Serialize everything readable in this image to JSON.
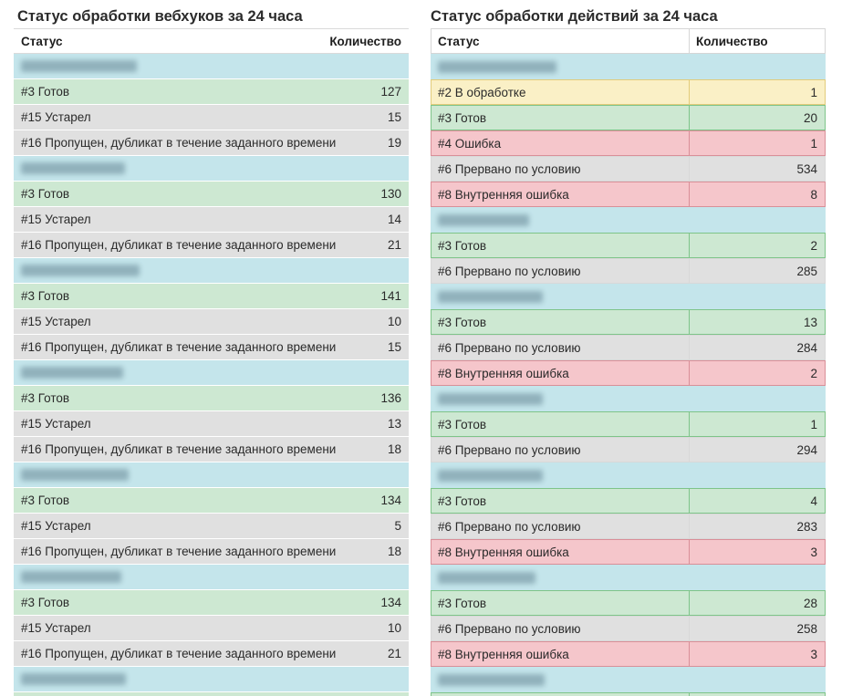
{
  "page": {
    "background": "#ffffff"
  },
  "colors": {
    "group_header_bg": "#c4e5eb",
    "redacted_blob": "#8cadb8",
    "header_border": "#d8d8d8",
    "variants": {
      "green": {
        "bg": "#cde8d2",
        "border": "#7ec489"
      },
      "gray": {
        "bg": "#e0e0e0",
        "border": "#d8d8d8"
      },
      "yellow": {
        "bg": "#faf0c6",
        "border": "#e2cc7b"
      },
      "red": {
        "bg": "#f5c6cb",
        "border": "#d98f98"
      }
    }
  },
  "left_table": {
    "title": "Статус обработки вебхуков за 24 часа",
    "columns": {
      "status": "Статус",
      "count": "Количество"
    },
    "bordered": false,
    "groups": [
      {
        "redacted_name_width": 127,
        "rows": [
          {
            "label": "#3 Готов",
            "count": "127",
            "variant": "green"
          },
          {
            "label": "#15 Устарел",
            "count": "15",
            "variant": "gray"
          },
          {
            "label": "#16 Пропущен, дубликат в течение заданного времени",
            "count": "19",
            "variant": "gray"
          }
        ]
      },
      {
        "redacted_name_width": 114,
        "rows": [
          {
            "label": "#3 Готов",
            "count": "130",
            "variant": "green"
          },
          {
            "label": "#15 Устарел",
            "count": "14",
            "variant": "gray"
          },
          {
            "label": "#16 Пропущен, дубликат в течение заданного времени",
            "count": "21",
            "variant": "gray"
          }
        ]
      },
      {
        "redacted_name_width": 130,
        "rows": [
          {
            "label": "#3 Готов",
            "count": "141",
            "variant": "green"
          },
          {
            "label": "#15 Устарел",
            "count": "10",
            "variant": "gray"
          },
          {
            "label": "#16 Пропущен, дубликат в течение заданного времени",
            "count": "15",
            "variant": "gray"
          }
        ]
      },
      {
        "redacted_name_width": 112,
        "rows": [
          {
            "label": "#3 Готов",
            "count": "136",
            "variant": "green"
          },
          {
            "label": "#15 Устарел",
            "count": "13",
            "variant": "gray"
          },
          {
            "label": "#16 Пропущен, дубликат в течение заданного времени",
            "count": "18",
            "variant": "gray"
          }
        ]
      },
      {
        "redacted_name_width": 118,
        "rows": [
          {
            "label": "#3 Готов",
            "count": "134",
            "variant": "green"
          },
          {
            "label": "#15 Устарел",
            "count": "5",
            "variant": "gray"
          },
          {
            "label": "#16 Пропущен, дубликат в течение заданного времени",
            "count": "18",
            "variant": "gray"
          }
        ]
      },
      {
        "redacted_name_width": 110,
        "rows": [
          {
            "label": "#3 Готов",
            "count": "134",
            "variant": "green"
          },
          {
            "label": "#15 Устарел",
            "count": "10",
            "variant": "gray"
          },
          {
            "label": "#16 Пропущен, дубликат в течение заданного времени",
            "count": "21",
            "variant": "gray"
          }
        ]
      },
      {
        "redacted_name_width": 115,
        "rows": [
          {
            "label": "",
            "count": "",
            "variant": "green"
          }
        ]
      }
    ]
  },
  "right_table": {
    "title": "Статус обработки действий за 24 часа",
    "columns": {
      "status": "Статус",
      "count": "Количество"
    },
    "bordered": true,
    "groups": [
      {
        "redacted_name_width": 130,
        "rows": [
          {
            "label": "#2 В обработке",
            "count": "1",
            "variant": "yellow"
          },
          {
            "label": "#3 Готов",
            "count": "20",
            "variant": "green"
          },
          {
            "label": "#4 Ошибка",
            "count": "1",
            "variant": "red"
          },
          {
            "label": "#6 Прервано по условию",
            "count": "534",
            "variant": "gray"
          },
          {
            "label": "#8 Внутренняя ошибка",
            "count": "8",
            "variant": "red"
          }
        ]
      },
      {
        "redacted_name_width": 100,
        "rows": [
          {
            "label": "#3 Готов",
            "count": "2",
            "variant": "green"
          },
          {
            "label": "#6 Прервано по условию",
            "count": "285",
            "variant": "gray"
          }
        ]
      },
      {
        "redacted_name_width": 115,
        "rows": [
          {
            "label": "#3 Готов",
            "count": "13",
            "variant": "green"
          },
          {
            "label": "#6 Прервано по условию",
            "count": "284",
            "variant": "gray"
          },
          {
            "label": "#8 Внутренняя ошибка",
            "count": "2",
            "variant": "red"
          }
        ]
      },
      {
        "redacted_name_width": 115,
        "rows": [
          {
            "label": "#3 Готов",
            "count": "1",
            "variant": "green"
          },
          {
            "label": "#6 Прервано по условию",
            "count": "294",
            "variant": "gray"
          }
        ]
      },
      {
        "redacted_name_width": 115,
        "rows": [
          {
            "label": "#3 Готов",
            "count": "4",
            "variant": "green"
          },
          {
            "label": "#6 Прервано по условию",
            "count": "283",
            "variant": "gray"
          },
          {
            "label": "#8 Внутренняя ошибка",
            "count": "3",
            "variant": "red"
          }
        ]
      },
      {
        "redacted_name_width": 107,
        "rows": [
          {
            "label": "#3 Готов",
            "count": "28",
            "variant": "green"
          },
          {
            "label": "#6 Прервано по условию",
            "count": "258",
            "variant": "gray"
          },
          {
            "label": "#8 Внутренняя ошибка",
            "count": "3",
            "variant": "red"
          }
        ]
      },
      {
        "redacted_name_width": 117,
        "rows": [
          {
            "label": "",
            "count": "",
            "variant": "green"
          }
        ]
      }
    ]
  }
}
